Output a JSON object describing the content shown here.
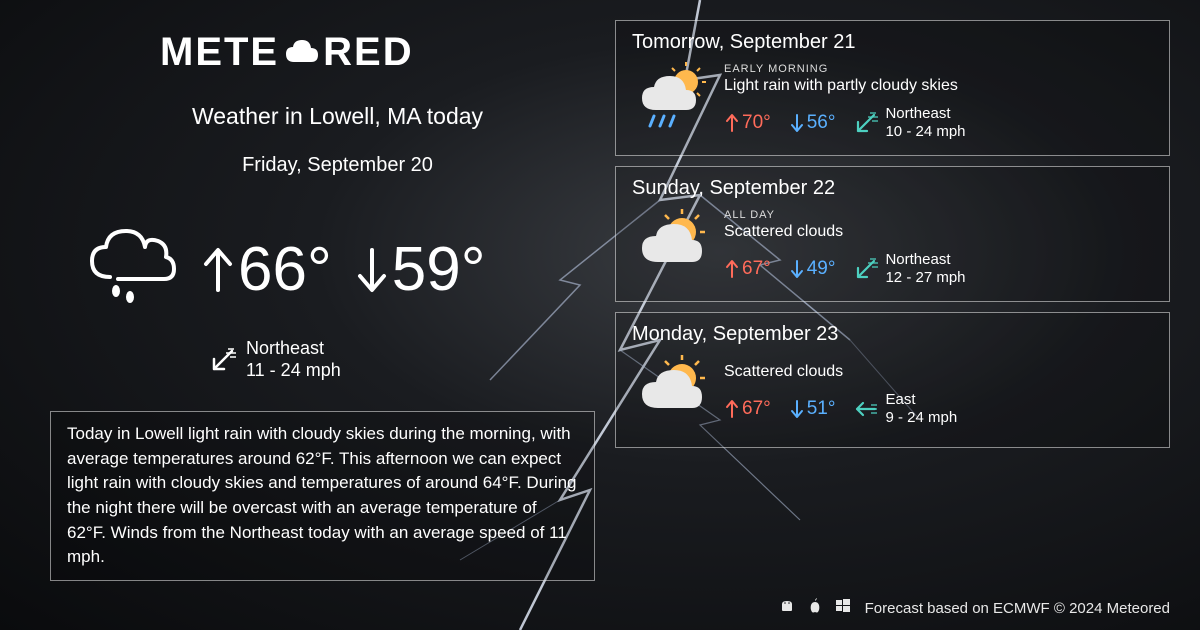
{
  "brand": {
    "prefix": "METE",
    "suffix": "RED"
  },
  "title": "Weather in Lowell, MA today",
  "date": "Friday, September 20",
  "today": {
    "high": "66°",
    "low": "59°",
    "wind_dir": "Northeast",
    "wind_speed": "11 - 24 mph"
  },
  "description": "Today in Lowell light rain with cloudy skies during the morning, with average temperatures around 62°F. This afternoon we can expect light rain with cloudy skies and temperatures of around 64°F. During the night there will be overcast with an average temperature of 62°F. Winds from the Northeast today with an average speed of 11 mph.",
  "forecast": [
    {
      "date": "Tomorrow, September 21",
      "period": "EARLY MORNING",
      "condition": "Light rain with partly cloudy skies",
      "high": "70°",
      "low": "56°",
      "wind_dir": "Northeast",
      "wind_speed": "10 - 24 mph",
      "icon": "rain-sun"
    },
    {
      "date": "Sunday, September 22",
      "period": "ALL DAY",
      "condition": "Scattered clouds",
      "high": "67°",
      "low": "49°",
      "wind_dir": "Northeast",
      "wind_speed": "12 - 27 mph",
      "icon": "partly-cloudy"
    },
    {
      "date": "Monday, September 23",
      "period": "",
      "condition": "Scattered clouds",
      "high": "67°",
      "low": "51°",
      "wind_dir": "East",
      "wind_speed": "9 - 24 mph",
      "icon": "partly-cloudy"
    }
  ],
  "footer": "Forecast based on ECMWF © 2024 Meteored",
  "colors": {
    "high": "#ff6b5a",
    "low": "#5ab0ff",
    "wind_arrow": "#4dd0c0",
    "sun": "#ffb84d",
    "cloud": "#e8e8e8",
    "rain": "#5ab0ff"
  }
}
